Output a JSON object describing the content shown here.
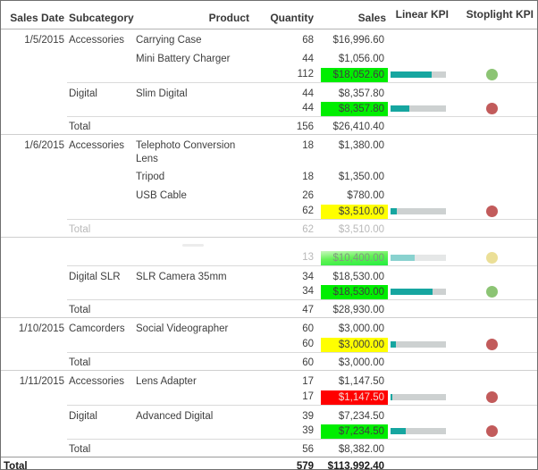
{
  "report": {
    "columns": [
      "Sales Date",
      "Subcategory",
      "Product",
      "Quantity",
      "Sales",
      "Linear KPI",
      "Stoplight KPI"
    ],
    "colors": {
      "kpi_good_bg": "#00ee00",
      "kpi_warn_bg": "#ffff00",
      "kpi_bad_bg": "#ff0000",
      "bar_fill": "#16a6a0",
      "bar_track": "#cdd1d1",
      "stoplight_green": "#8cc474",
      "stoplight_red": "#c25b5b",
      "stoplight_yellow": "#e8d985"
    },
    "rows": [
      {
        "kind": "detail",
        "date": "1/5/2015",
        "subcat": "Accessories",
        "product": "Carrying Case",
        "qty": "68",
        "sales": "$16,996.60"
      },
      {
        "kind": "detail",
        "product": "Mini Battery Charger",
        "qty": "44",
        "sales": "$1,056.00"
      },
      {
        "kind": "kpi",
        "qty": "112",
        "sales": "$18,052.60",
        "bg": "good",
        "bar": 74,
        "dot": "green"
      },
      {
        "kind": "detail",
        "sep": "sub",
        "subcat": "Digital",
        "product": "Slim Digital",
        "qty": "44",
        "sales": "$8,357.80"
      },
      {
        "kind": "kpi",
        "qty": "44",
        "sales": "$8,357.80",
        "bg": "good",
        "bar": 34,
        "dot": "red"
      },
      {
        "kind": "total",
        "sep": "sub",
        "label": "Total",
        "qty": "156",
        "sales": "$26,410.40"
      },
      {
        "kind": "detail",
        "sep": "full",
        "date": "1/6/2015",
        "subcat": "Accessories",
        "product": "Telephoto Conversion Lens",
        "qty": "18",
        "sales": "$1,380.00"
      },
      {
        "kind": "detail",
        "product": "Tripod",
        "qty": "18",
        "sales": "$1,350.00"
      },
      {
        "kind": "detail",
        "product": "USB Cable",
        "qty": "26",
        "sales": "$780.00"
      },
      {
        "kind": "kpi",
        "qty": "62",
        "sales": "$3,510.00",
        "bg": "warn",
        "bar": 11,
        "dot": "red"
      },
      {
        "kind": "total",
        "sep": "sub",
        "label": "Total",
        "qty": "62",
        "sales": "$3,510.00",
        "faded": true
      },
      {
        "kind": "ghost",
        "sep": "full"
      },
      {
        "kind": "kpi",
        "qty": "13",
        "sales": "$10,400.00",
        "bg": "goodfade",
        "bar": 44,
        "dot": "yellow",
        "faded": true
      },
      {
        "kind": "detail",
        "sep": "sub",
        "subcat": "Digital SLR",
        "product": "SLR Camera 35mm",
        "qty": "34",
        "sales": "$18,530.00"
      },
      {
        "kind": "kpi",
        "qty": "34",
        "sales": "$18,530.00",
        "bg": "good",
        "bar": 76,
        "dot": "green"
      },
      {
        "kind": "total",
        "sep": "sub",
        "label": "Total",
        "qty": "47",
        "sales": "$28,930.00"
      },
      {
        "kind": "detail",
        "sep": "full",
        "date": "1/10/2015",
        "subcat": "Camcorders",
        "product": "Social Videographer",
        "qty": "60",
        "sales": "$3,000.00"
      },
      {
        "kind": "kpi",
        "qty": "60",
        "sales": "$3,000.00",
        "bg": "warn",
        "bar": 9,
        "dot": "red"
      },
      {
        "kind": "total",
        "sep": "sub",
        "label": "Total",
        "qty": "60",
        "sales": "$3,000.00"
      },
      {
        "kind": "detail",
        "sep": "full",
        "date": "1/11/2015",
        "subcat": "Accessories",
        "product": "Lens Adapter",
        "qty": "17",
        "sales": "$1,147.50"
      },
      {
        "kind": "kpi",
        "qty": "17",
        "sales": "$1,147.50",
        "bg": "bad",
        "bar": 4,
        "dot": "red"
      },
      {
        "kind": "detail",
        "sep": "sub",
        "subcat": "Digital",
        "product": "Advanced Digital",
        "qty": "39",
        "sales": "$7,234.50"
      },
      {
        "kind": "kpi",
        "qty": "39",
        "sales": "$7,234.50",
        "bg": "good",
        "bar": 28,
        "dot": "red"
      },
      {
        "kind": "total",
        "sep": "sub",
        "label": "Total",
        "qty": "56",
        "sales": "$8,382.00"
      },
      {
        "kind": "grand",
        "sep": "grand",
        "date": "Total",
        "qty": "579",
        "sales": "$113,992.40"
      }
    ]
  }
}
